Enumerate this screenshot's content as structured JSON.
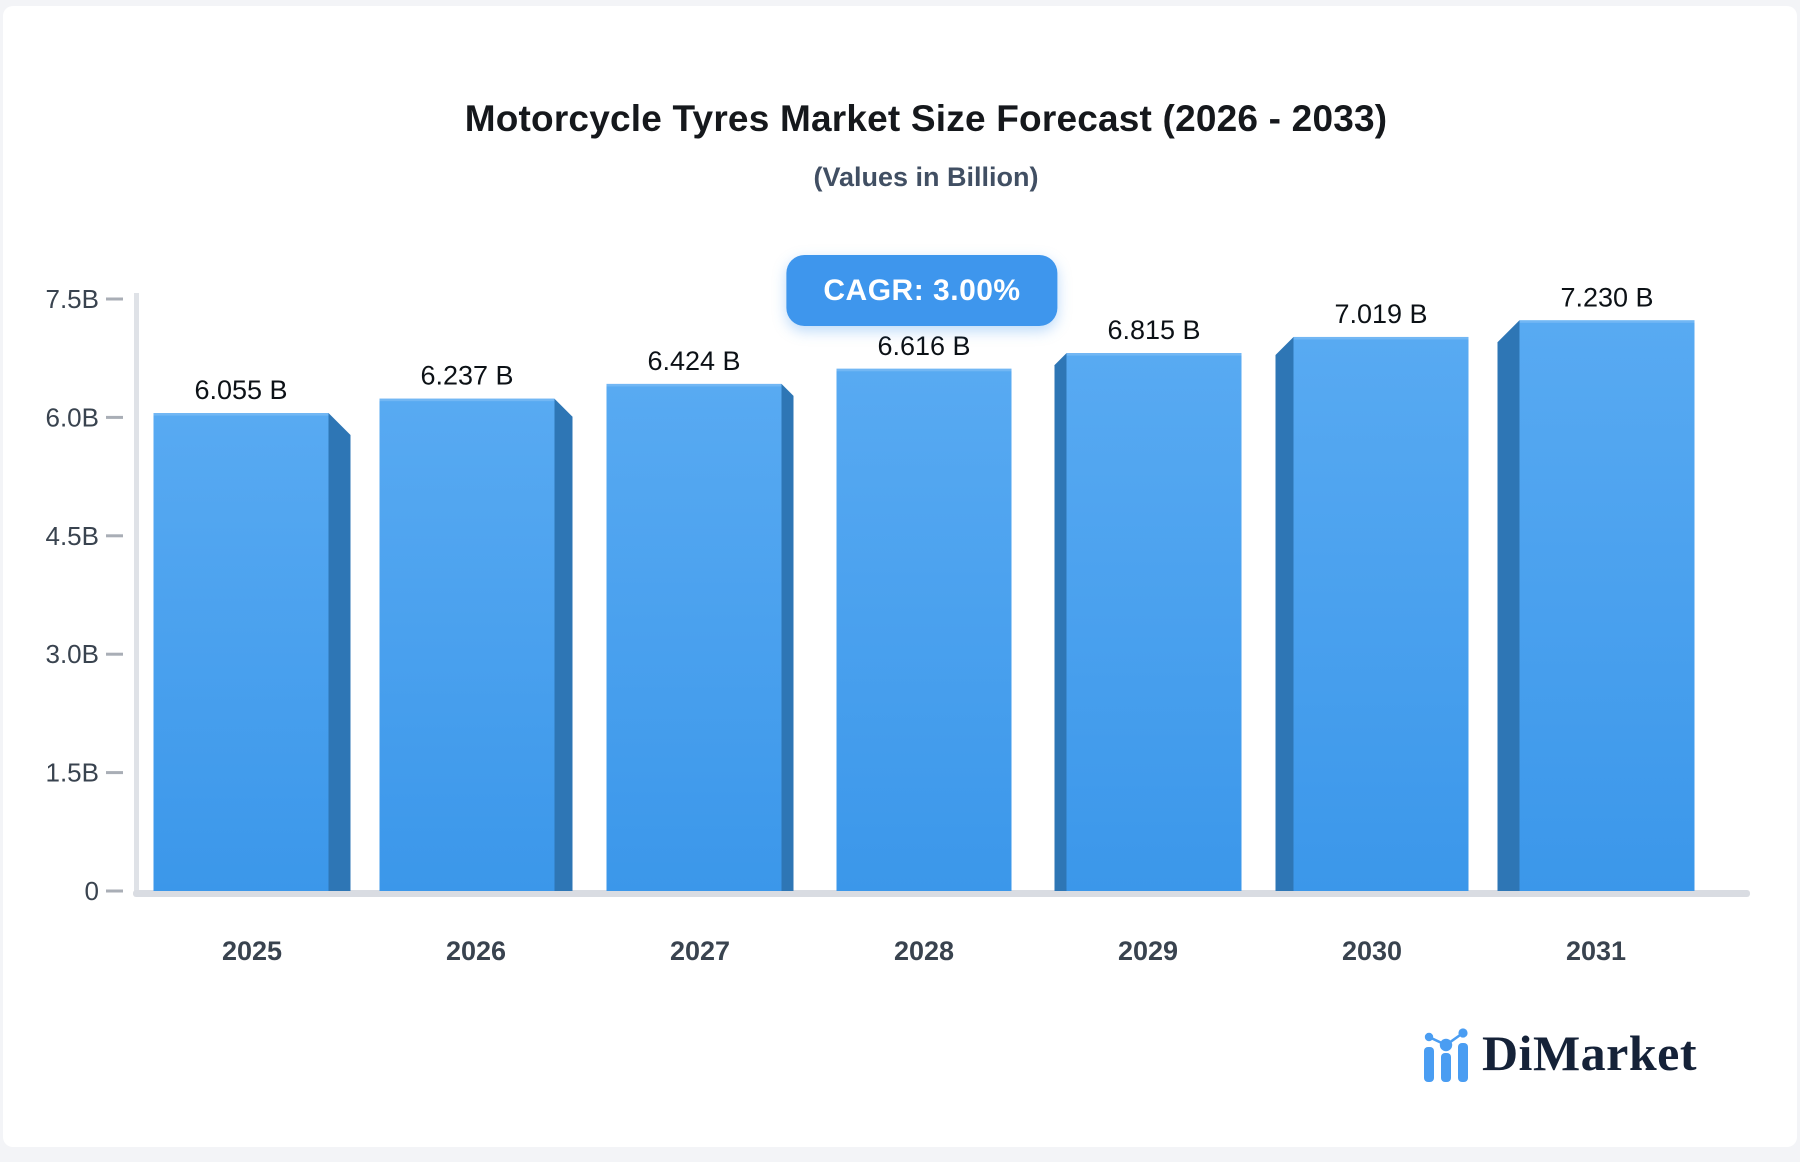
{
  "chart_data": {
    "type": "bar",
    "title": "Motorcycle Tyres Market Size Forecast (2026 - 2033)",
    "subtitle": "(Values in Billion)",
    "cagr_label": "CAGR: 3.00%",
    "categories": [
      "2025",
      "2026",
      "2027",
      "2028",
      "2029",
      "2030",
      "2031"
    ],
    "values": [
      6.055,
      6.237,
      6.424,
      6.616,
      6.815,
      7.019,
      7.23
    ],
    "value_labels": [
      "6.055 B",
      "6.237 B",
      "6.424 B",
      "6.616 B",
      "6.815 B",
      "7.019 B",
      "7.230 B"
    ],
    "xlabel": "",
    "ylabel": "",
    "ylim": [
      0,
      7.5
    ],
    "yticks": [
      "0",
      "1.5B",
      "3.0B",
      "4.5B",
      "6.0B",
      "7.5B"
    ],
    "grid": false,
    "legend": false,
    "colors": {
      "bar_front_top": "#58aaf2",
      "bar_front_bottom": "#3b97ea",
      "bar_top_highlight": "#72b7f4",
      "bar_side": "#2e76b5",
      "badge_bg": "#3e96ed",
      "axis_line": "#dfe2e7",
      "baseline": "#d9dce2",
      "tick_dash": "#a9aeb6",
      "tick_text": "#39434f",
      "value_text": "#0c1116"
    }
  },
  "brand": {
    "name": "DiMarket",
    "text_color": "#152238",
    "icon": "bar-chart-logo-icon",
    "icon_color": "#4a9df2"
  }
}
